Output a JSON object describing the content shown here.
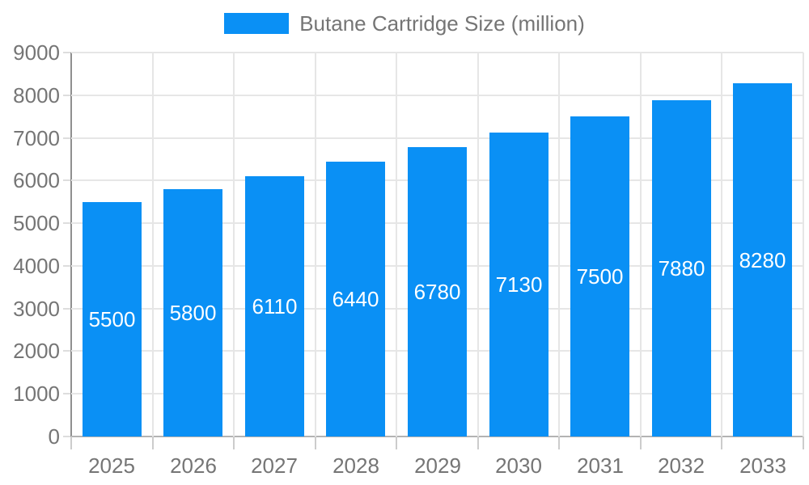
{
  "legend": {
    "label": "Butane Cartridge Size (million)"
  },
  "chart_data": {
    "type": "bar",
    "title": "",
    "xlabel": "",
    "ylabel": "",
    "categories": [
      "2025",
      "2026",
      "2027",
      "2028",
      "2029",
      "2030",
      "2031",
      "2032",
      "2033"
    ],
    "series": [
      {
        "name": "Butane Cartridge Size (million)",
        "values": [
          5500,
          5800,
          6110,
          6440,
          6780,
          7130,
          7500,
          7880,
          8280
        ]
      }
    ],
    "ylim": [
      0,
      9000
    ],
    "ytick_step": 1000,
    "ytick_labels": [
      "0",
      "1000",
      "2000",
      "3000",
      "4000",
      "5000",
      "6000",
      "7000",
      "8000",
      "9000"
    ],
    "grid": true,
    "legend_position": "top",
    "value_labels_position": "inside-center"
  },
  "style": {
    "bar_color": "#0a90f5",
    "value_label_color": "#ffffff",
    "grid_color": "#e6e6e6",
    "baseline_color": "#b3b3b3",
    "axis_line_color": "#8f8f8f",
    "tick_label_color": "#757575",
    "legend_text_color": "#757575",
    "background": "#ffffff"
  }
}
